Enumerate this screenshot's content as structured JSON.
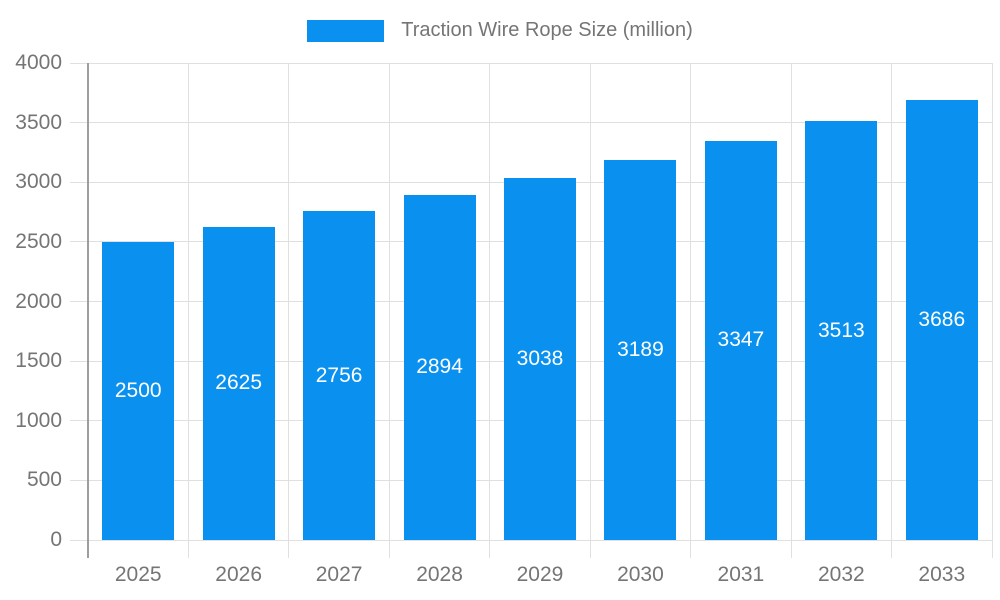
{
  "chart_data": {
    "type": "bar",
    "title": "Traction Wire Rope Size (million)",
    "categories": [
      "2025",
      "2026",
      "2027",
      "2028",
      "2029",
      "2030",
      "2031",
      "2032",
      "2033"
    ],
    "series": [
      {
        "name": "Traction Wire Rope Size (million)",
        "values": [
          2500,
          2625,
          2756,
          2894,
          3038,
          3189,
          3347,
          3513,
          3686
        ]
      }
    ],
    "bar_value_labels": [
      "2500",
      "2625",
      "2756",
      "2894",
      "3038",
      "3189",
      "3347",
      "3513",
      "3686"
    ],
    "bar_label_position": "inside-center",
    "xlabel": "",
    "ylabel": "",
    "ylim": [
      0,
      4000
    ],
    "yticks": [
      0,
      500,
      1000,
      1500,
      2000,
      2500,
      3000,
      3500,
      4000
    ],
    "grid": "horizontal-and-vertical",
    "legend_position": "top-center"
  },
  "legend": {
    "label": "Traction Wire Rope Size (million)"
  },
  "colors": {
    "bar": "#0a91f0",
    "bar_label_text": "#ffffff",
    "axis_text": "#757575",
    "legend_text": "#757575",
    "gridline": "#e0e0e0",
    "axis_line": "#9e9e9e",
    "background": "#ffffff"
  }
}
